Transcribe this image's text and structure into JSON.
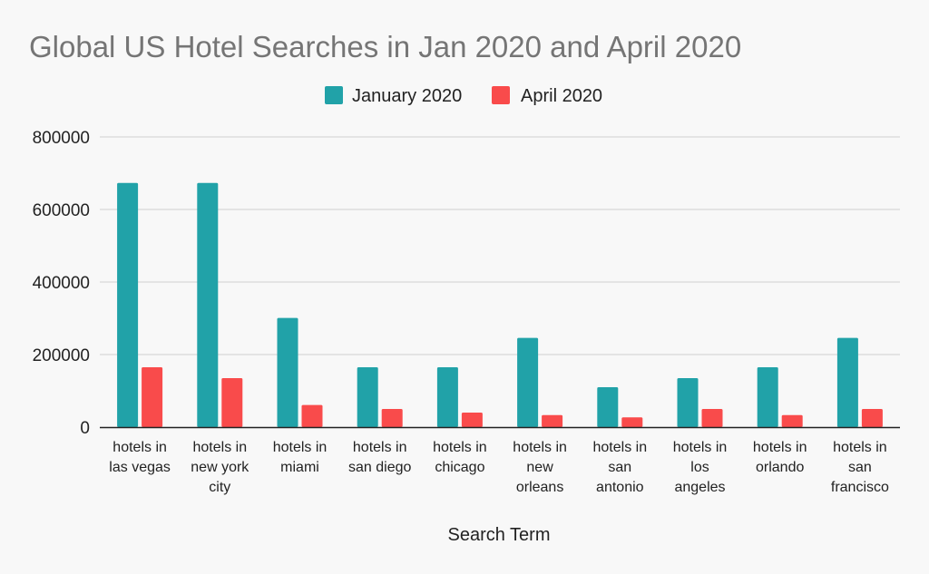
{
  "chart_data": {
    "type": "bar",
    "title": "Global US Hotel Searches in Jan 2020 and April 2020",
    "xlabel": "Search Term",
    "ylabel": "",
    "ylim": [
      0,
      800000
    ],
    "yticks": [
      "0",
      "200000",
      "400000",
      "600000",
      "800000"
    ],
    "grid": true,
    "legend_position": "top",
    "categories": [
      [
        "hotels in",
        "las vegas"
      ],
      [
        "hotels in",
        "new york",
        "city"
      ],
      [
        "hotels in",
        "miami"
      ],
      [
        "hotels in",
        "san diego"
      ],
      [
        "hotels in",
        "chicago"
      ],
      [
        "hotels in",
        "new",
        "orleans"
      ],
      [
        "hotels in",
        "san",
        "antonio"
      ],
      [
        "hotels in",
        "los",
        "angeles"
      ],
      [
        "hotels in",
        "orlando"
      ],
      [
        "hotels in",
        "san",
        "francisco"
      ]
    ],
    "series": [
      {
        "name": "January 2020",
        "color": "#21a2a8",
        "values": [
          673000,
          673000,
          301000,
          165000,
          165000,
          246000,
          110000,
          135000,
          165000,
          246000
        ]
      },
      {
        "name": "April 2020",
        "color": "#f94b4b",
        "values": [
          165000,
          135000,
          61000,
          50000,
          40000,
          33000,
          27000,
          50000,
          33000,
          50000
        ]
      }
    ]
  }
}
